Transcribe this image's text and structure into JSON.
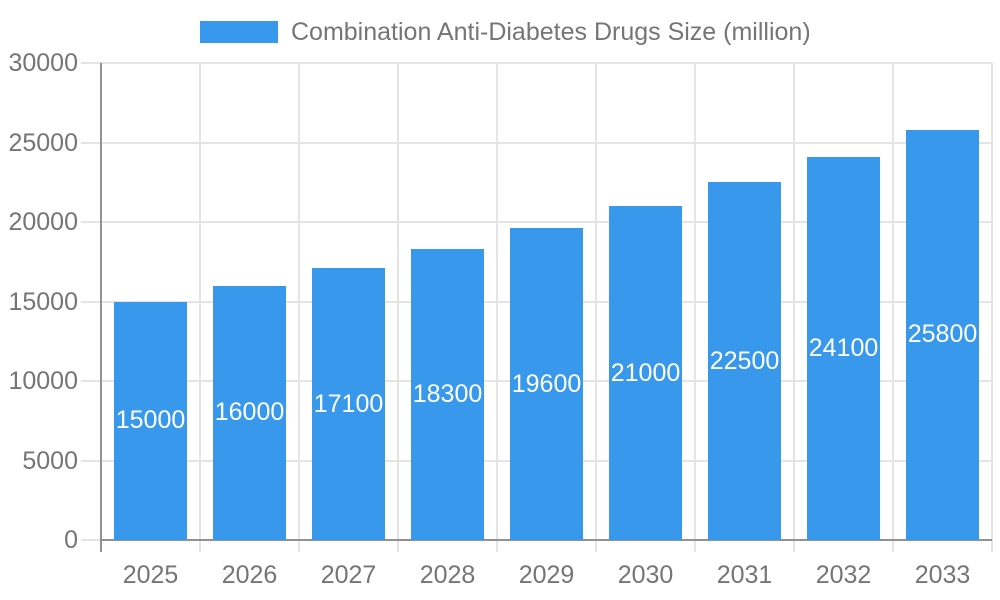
{
  "legend": {
    "label": "Combination Anti-Diabetes Drugs Size (million)"
  },
  "chart_data": {
    "type": "bar",
    "title": "Combination Anti-Diabetes Drugs Size (million)",
    "categories": [
      "2025",
      "2026",
      "2027",
      "2028",
      "2029",
      "2030",
      "2031",
      "2032",
      "2033"
    ],
    "values": [
      15000,
      16000,
      17100,
      18300,
      19600,
      21000,
      22500,
      24100,
      25800
    ],
    "series": [
      {
        "name": "Combination Anti-Diabetes Drugs Size (million)",
        "values": [
          15000,
          16000,
          17100,
          18300,
          19600,
          21000,
          22500,
          24100,
          25800
        ]
      }
    ],
    "xlabel": "",
    "ylabel": "",
    "ylim": [
      0,
      30000
    ],
    "yticks": [
      0,
      5000,
      10000,
      15000,
      20000,
      25000,
      30000
    ],
    "grid": true,
    "legend_position": "top",
    "bar_color": "#3898ec",
    "bar_label_color": "#ffffff",
    "axis_text_color": "#757575",
    "gridline_color": "#e4e4e4",
    "axis_line_color": "#919191",
    "background_color": "#ffffff"
  }
}
